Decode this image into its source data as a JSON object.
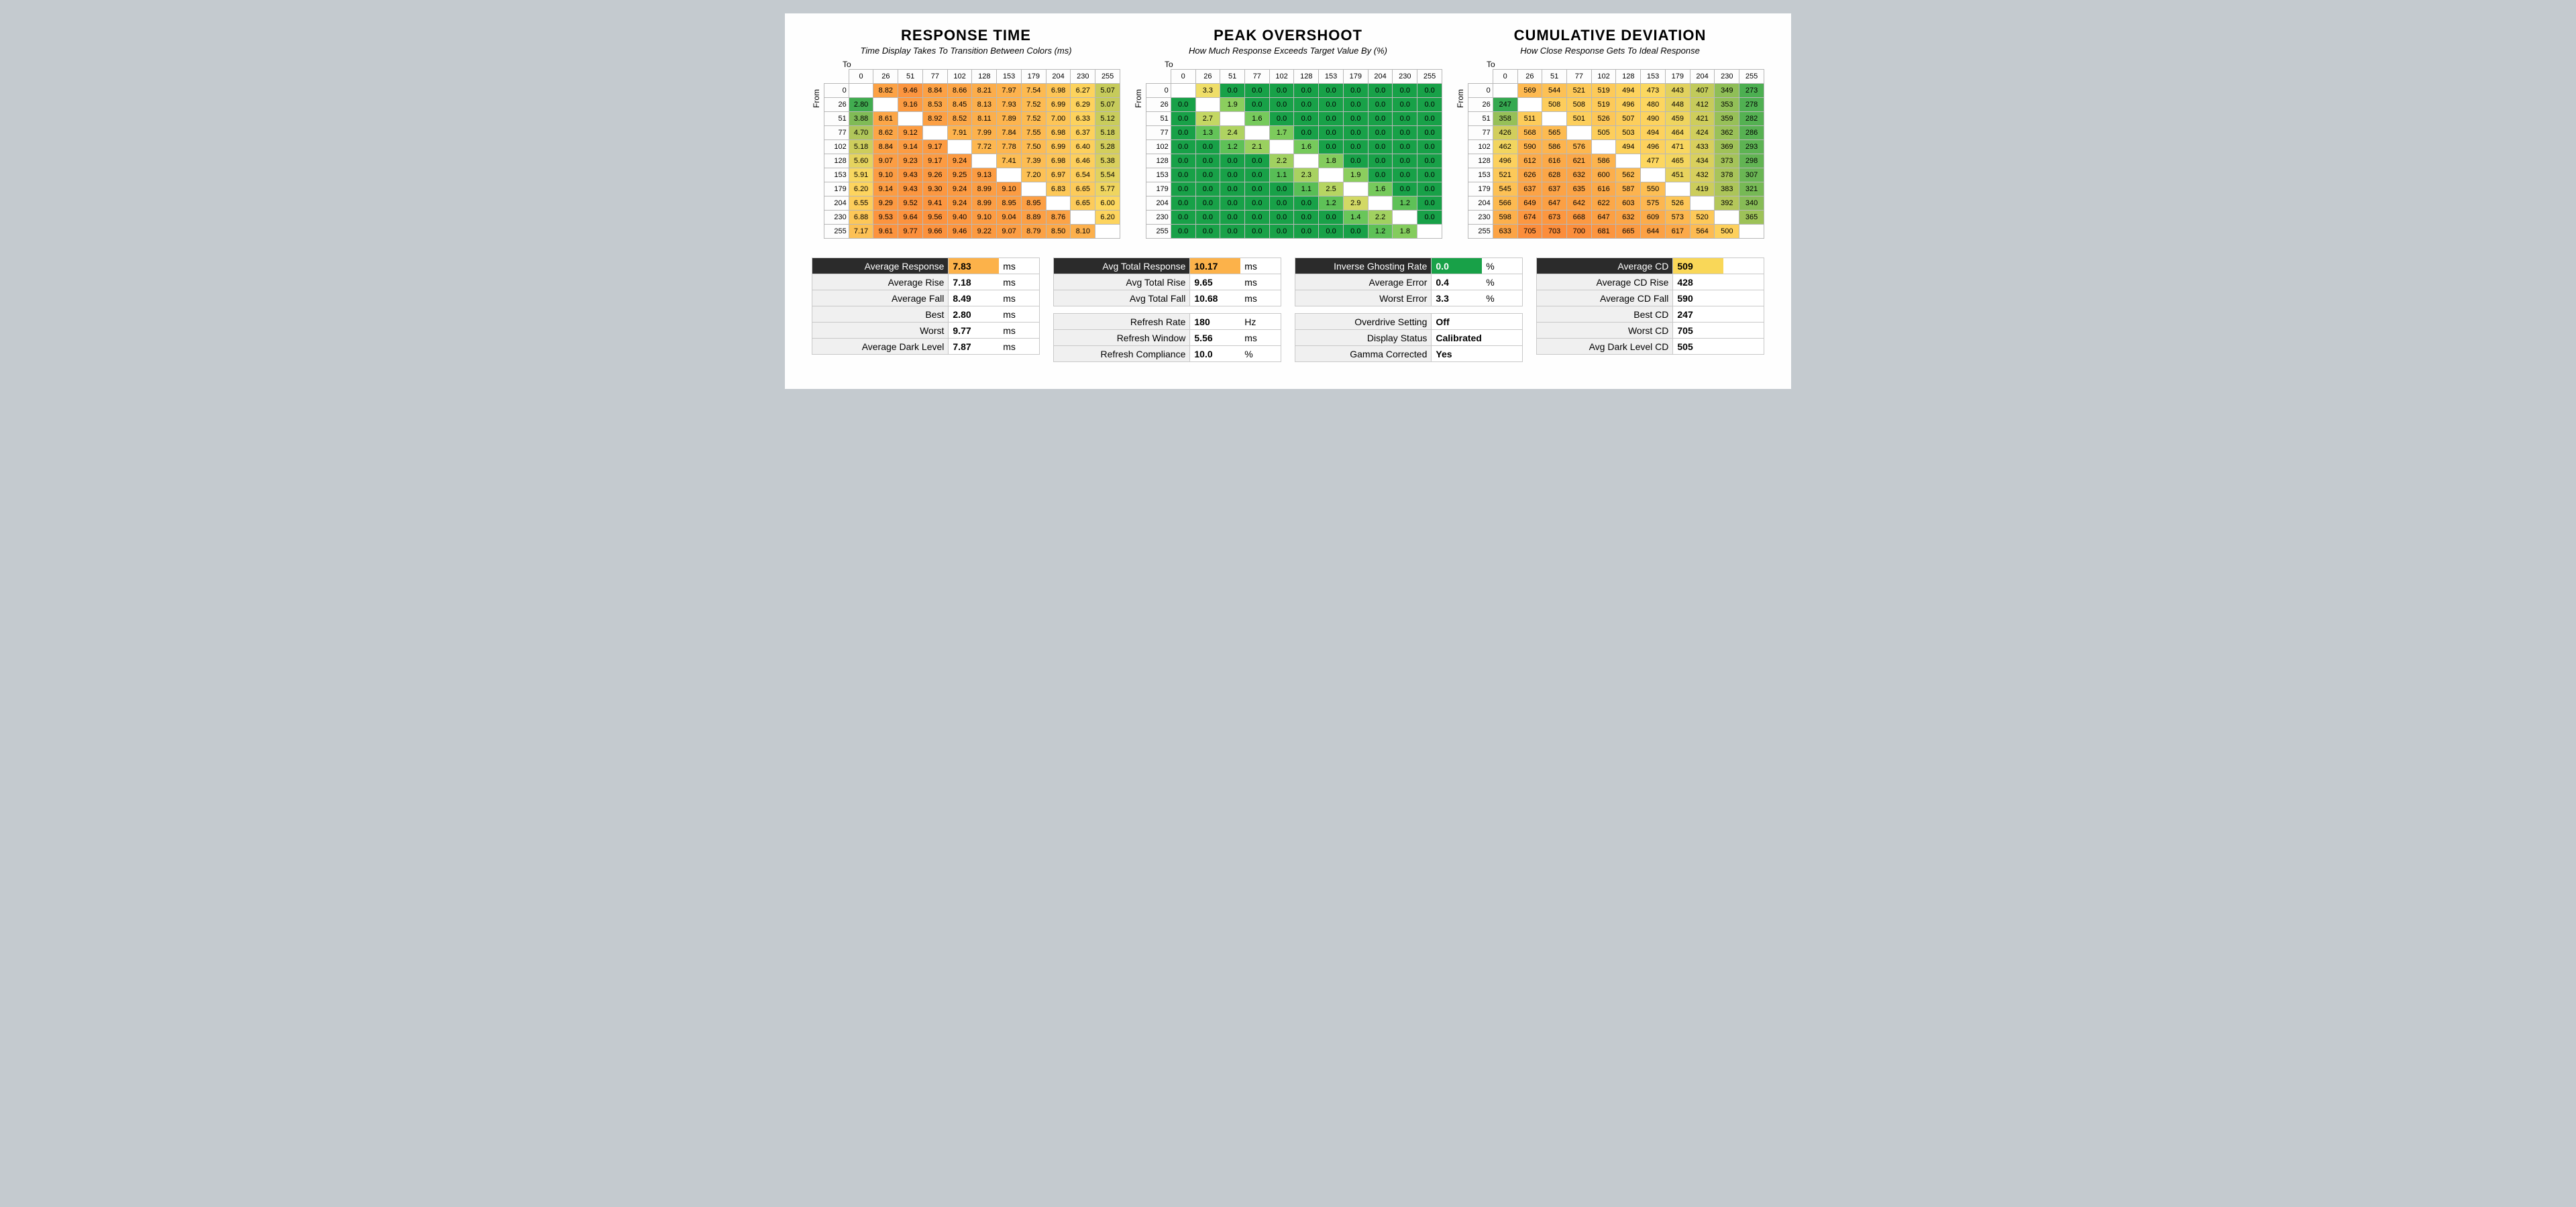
{
  "axis_labels": [
    "0",
    "26",
    "51",
    "77",
    "102",
    "128",
    "153",
    "179",
    "204",
    "230",
    "255"
  ],
  "axis_to_text": "To",
  "axis_from_text": "From",
  "panels": {
    "response": {
      "title": "RESPONSE TIME",
      "subtitle": "Time Display Takes To Transition Between Colors (ms)",
      "color_scale": {
        "min_color": "#2fa84f",
        "mid_color": "#fdd860",
        "max_color": "#fc8b3a",
        "min": 2.5,
        "mid": 6.0,
        "max": 10.0
      },
      "rows": [
        [
          null,
          8.82,
          9.46,
          8.84,
          8.66,
          8.21,
          7.97,
          7.54,
          6.98,
          6.27,
          5.07
        ],
        [
          2.8,
          null,
          9.16,
          8.53,
          8.45,
          8.13,
          7.93,
          7.52,
          6.99,
          6.29,
          5.07
        ],
        [
          3.88,
          8.61,
          null,
          8.92,
          8.52,
          8.11,
          7.89,
          7.52,
          7.0,
          6.33,
          5.12
        ],
        [
          4.7,
          8.62,
          9.12,
          null,
          7.91,
          7.99,
          7.84,
          7.55,
          6.98,
          6.37,
          5.18
        ],
        [
          5.18,
          8.84,
          9.14,
          9.17,
          null,
          7.72,
          7.78,
          7.5,
          6.99,
          6.4,
          5.28
        ],
        [
          5.6,
          9.07,
          9.23,
          9.17,
          9.24,
          null,
          7.41,
          7.39,
          6.98,
          6.46,
          5.38
        ],
        [
          5.91,
          9.1,
          9.43,
          9.26,
          9.25,
          9.13,
          null,
          7.2,
          6.97,
          6.54,
          5.54
        ],
        [
          6.2,
          9.14,
          9.43,
          9.3,
          9.24,
          8.99,
          9.1,
          null,
          6.83,
          6.65,
          5.77
        ],
        [
          6.55,
          9.29,
          9.52,
          9.41,
          9.24,
          8.99,
          8.95,
          8.95,
          null,
          6.65,
          6.0
        ],
        [
          6.88,
          9.53,
          9.64,
          9.56,
          9.4,
          9.1,
          9.04,
          8.89,
          8.76,
          null,
          6.2
        ],
        [
          7.17,
          9.61,
          9.77,
          9.66,
          9.46,
          9.22,
          9.07,
          8.79,
          8.5,
          8.1,
          null
        ]
      ],
      "decimals": 2
    },
    "overshoot": {
      "title": "PEAK OVERSHOOT",
      "subtitle": "How Much Response Exceeds Target Value By (%)",
      "color_scale": {
        "min_color": "#18a148",
        "mid_color": "#6fc95b",
        "max_color": "#fde069",
        "min": 0,
        "mid": 1.5,
        "max": 3.5
      },
      "rows": [
        [
          null,
          3.3,
          0.0,
          0.0,
          0.0,
          0.0,
          0.0,
          0.0,
          0.0,
          0.0,
          0.0
        ],
        [
          0.0,
          null,
          1.9,
          0.0,
          0.0,
          0.0,
          0.0,
          0.0,
          0.0,
          0.0,
          0.0
        ],
        [
          0.0,
          2.7,
          null,
          1.6,
          0.0,
          0.0,
          0.0,
          0.0,
          0.0,
          0.0,
          0.0
        ],
        [
          0.0,
          1.3,
          2.4,
          null,
          1.7,
          0.0,
          0.0,
          0.0,
          0.0,
          0.0,
          0.0
        ],
        [
          0.0,
          0.0,
          1.2,
          2.1,
          null,
          1.6,
          0.0,
          0.0,
          0.0,
          0.0,
          0.0
        ],
        [
          0.0,
          0.0,
          0.0,
          0.0,
          2.2,
          null,
          1.8,
          0.0,
          0.0,
          0.0,
          0.0
        ],
        [
          0.0,
          0.0,
          0.0,
          0.0,
          1.1,
          2.3,
          null,
          1.9,
          0.0,
          0.0,
          0.0
        ],
        [
          0.0,
          0.0,
          0.0,
          0.0,
          0.0,
          1.1,
          2.5,
          null,
          1.6,
          0.0,
          0.0
        ],
        [
          0.0,
          0.0,
          0.0,
          0.0,
          0.0,
          0.0,
          1.2,
          2.9,
          null,
          1.2,
          0.0
        ],
        [
          0.0,
          0.0,
          0.0,
          0.0,
          0.0,
          0.0,
          0.0,
          1.4,
          2.2,
          null,
          0.0
        ],
        [
          0.0,
          0.0,
          0.0,
          0.0,
          0.0,
          0.0,
          0.0,
          0.0,
          1.2,
          1.8,
          null
        ]
      ],
      "decimals": 1
    },
    "deviation": {
      "title": "CUMULATIVE DEVIATION",
      "subtitle": "How Close Response Gets To Ideal Response",
      "color_scale": {
        "min_color": "#2fa84f",
        "mid_color": "#fdd860",
        "max_color": "#fc8b3a",
        "min": 240,
        "mid": 475,
        "max": 710
      },
      "rows": [
        [
          null,
          569,
          544,
          521,
          519,
          494,
          473,
          443,
          407,
          349,
          273
        ],
        [
          247,
          null,
          508,
          508,
          519,
          496,
          480,
          448,
          412,
          353,
          278
        ],
        [
          358,
          511,
          null,
          501,
          526,
          507,
          490,
          459,
          421,
          359,
          282
        ],
        [
          426,
          568,
          565,
          null,
          505,
          503,
          494,
          464,
          424,
          362,
          286
        ],
        [
          462,
          590,
          586,
          576,
          null,
          494,
          496,
          471,
          433,
          369,
          293
        ],
        [
          496,
          612,
          616,
          621,
          586,
          null,
          477,
          465,
          434,
          373,
          298
        ],
        [
          521,
          626,
          628,
          632,
          600,
          562,
          null,
          451,
          432,
          378,
          307
        ],
        [
          545,
          637,
          637,
          635,
          616,
          587,
          550,
          null,
          419,
          383,
          321
        ],
        [
          566,
          649,
          647,
          642,
          622,
          603,
          575,
          526,
          null,
          392,
          340
        ],
        [
          598,
          674,
          673,
          668,
          647,
          632,
          609,
          573,
          520,
          null,
          365
        ],
        [
          633,
          705,
          703,
          700,
          681,
          665,
          644,
          617,
          564,
          500,
          null
        ]
      ],
      "decimals": 0
    }
  },
  "stats": {
    "col1": [
      {
        "header": true,
        "label": "Average Response",
        "value": "7.83",
        "unit": "ms",
        "highlight": "#fcb24a"
      },
      {
        "label": "Average Rise",
        "value": "7.18",
        "unit": "ms"
      },
      {
        "label": "Average Fall",
        "value": "8.49",
        "unit": "ms"
      },
      {
        "label": "Best",
        "value": "2.80",
        "unit": "ms"
      },
      {
        "label": "Worst",
        "value": "9.77",
        "unit": "ms"
      },
      {
        "label": "Average Dark Level",
        "value": "7.87",
        "unit": "ms"
      }
    ],
    "col2a": [
      {
        "header": true,
        "label": "Avg Total Response",
        "value": "10.17",
        "unit": "ms",
        "highlight": "#fcb24a"
      },
      {
        "label": "Avg Total Rise",
        "value": "9.65",
        "unit": "ms"
      },
      {
        "label": "Avg Total Fall",
        "value": "10.68",
        "unit": "ms"
      }
    ],
    "col2b": [
      {
        "label": "Refresh Rate",
        "value": "180",
        "unit": "Hz"
      },
      {
        "label": "Refresh Window",
        "value": "5.56",
        "unit": "ms"
      },
      {
        "label": "Refresh Compliance",
        "value": "10.0",
        "unit": "%"
      }
    ],
    "col3a": [
      {
        "header": true,
        "label": "Inverse Ghosting Rate",
        "value": "0.0",
        "unit": "%",
        "highlight": "#18a148",
        "hl_text": "#fff"
      },
      {
        "label": "Average Error",
        "value": "0.4",
        "unit": "%"
      },
      {
        "label": "Worst Error",
        "value": "3.3",
        "unit": "%"
      }
    ],
    "col3b": [
      {
        "label": "Overdrive Setting",
        "value": "Off",
        "unit": ""
      },
      {
        "label": "Display Status",
        "value": "Calibrated",
        "unit": ""
      },
      {
        "label": "Gamma Corrected",
        "value": "Yes",
        "unit": ""
      }
    ],
    "col4": [
      {
        "header": true,
        "label": "Average CD",
        "value": "509",
        "unit": "",
        "highlight": "#f9d758"
      },
      {
        "label": "Average CD Rise",
        "value": "428",
        "unit": ""
      },
      {
        "label": "Average CD Fall",
        "value": "590",
        "unit": ""
      },
      {
        "label": "Best CD",
        "value": "247",
        "unit": ""
      },
      {
        "label": "Worst CD",
        "value": "705",
        "unit": ""
      },
      {
        "label": "Avg Dark Level CD",
        "value": "505",
        "unit": ""
      }
    ]
  }
}
